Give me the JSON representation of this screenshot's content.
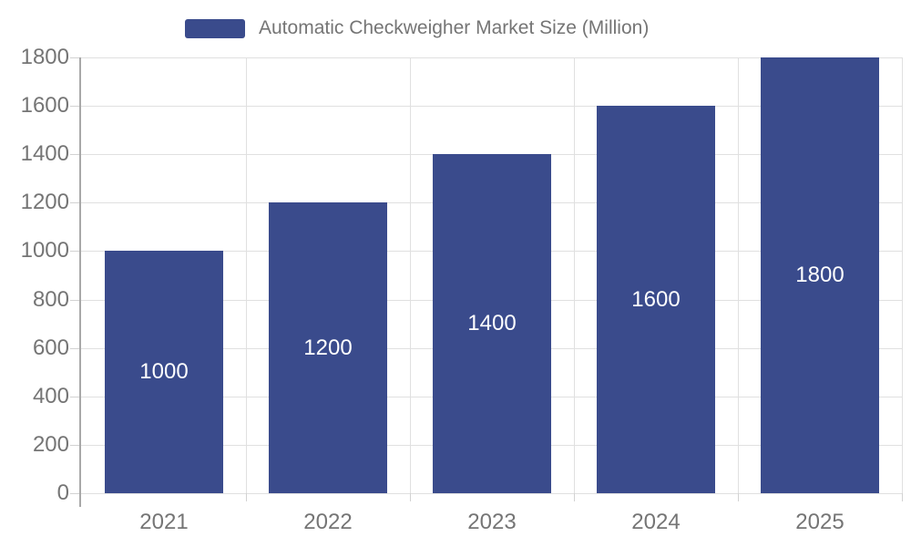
{
  "chart_data": {
    "type": "bar",
    "title": "Automatic Checkweigher Market Size (Million)",
    "categories": [
      "2021",
      "2022",
      "2023",
      "2024",
      "2025"
    ],
    "values": [
      1000,
      1200,
      1400,
      1600,
      1800
    ],
    "data_labels": [
      "1000",
      "1200",
      "1400",
      "1600",
      "1800"
    ],
    "data_label_position": "inside-center",
    "xlabel": "",
    "ylabel": "",
    "ylim": [
      0,
      1800
    ],
    "ytick_step": 200,
    "yticks": [
      0,
      200,
      400,
      600,
      800,
      1000,
      1200,
      1400,
      1600,
      1800
    ],
    "grid": true,
    "legend_position": "top",
    "colors": {
      "bar": "#3A4B8C",
      "data_label_text": "#FFFFFF",
      "axis_text": "#757575",
      "legend_text": "#757575",
      "gridline": "#E0E0E0",
      "tick": "#D2D2D2",
      "axis_line": "#A8A8A8",
      "background": "#FFFFFF"
    }
  }
}
